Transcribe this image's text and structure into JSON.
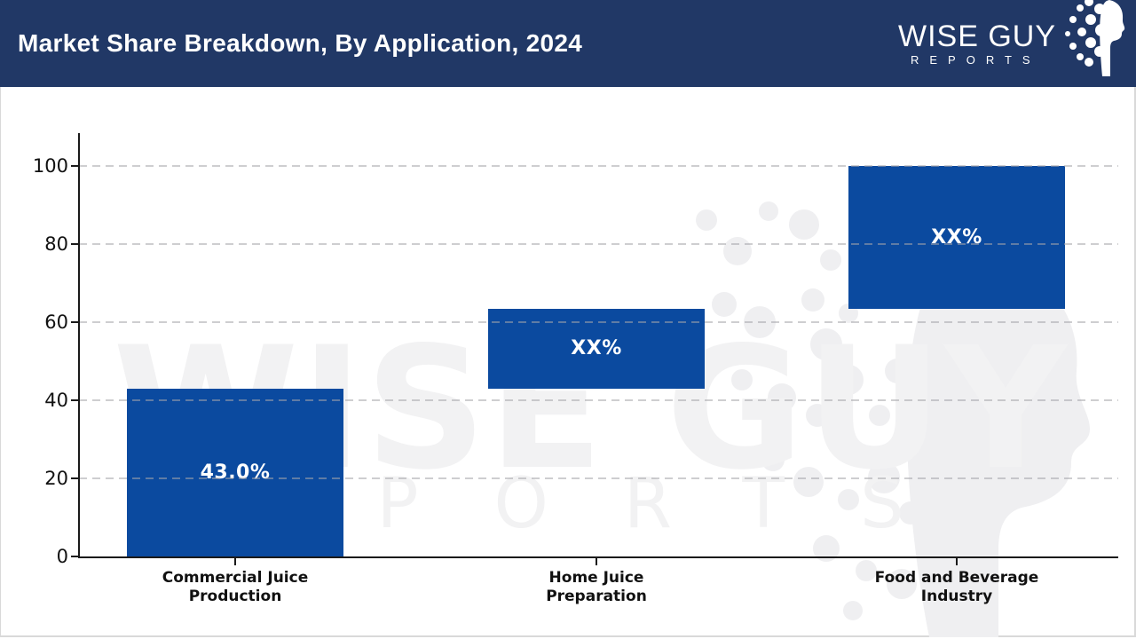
{
  "header": {
    "title": "Market Share Breakdown, By Application, 2024",
    "bg_color": "#213866",
    "logo": {
      "wordmark": "WISE GUY",
      "subtext": "REPORTS"
    }
  },
  "watermark": {
    "line1": "WISE GUY",
    "line2": "REPORTS"
  },
  "chart_data": {
    "type": "bar",
    "subtype": "waterfall",
    "title": "Market Share Breakdown, By Application, 2024",
    "categories": [
      {
        "slug": "commercial-juice-production",
        "lines": [
          "Commercial Juice",
          "Production"
        ]
      },
      {
        "slug": "home-juice-preparation",
        "lines": [
          "Home Juice",
          "Preparation"
        ]
      },
      {
        "slug": "food-and-beverage-industry",
        "lines": [
          "Food and Beverage",
          "Industry"
        ]
      }
    ],
    "segments": [
      {
        "category": "Commercial Juice Production",
        "start": 0,
        "end": 43.0,
        "label": "43.0%"
      },
      {
        "category": "Home Juice Preparation",
        "start": 43.0,
        "end": 63.5,
        "label": "XX%"
      },
      {
        "category": "Food and Beverage Industry",
        "start": 63.5,
        "end": 100.0,
        "label": "XX%"
      }
    ],
    "values": [
      43.0,
      20.5,
      36.5
    ],
    "ylim": [
      0,
      100
    ],
    "yticks": [
      0,
      20,
      40,
      60,
      80,
      100
    ],
    "grid": "horizontal-dashed",
    "legend": "none",
    "xlabel": "",
    "ylabel": "",
    "bar_color": "#0b4a9f",
    "bar_label_color": "#ffffff",
    "axis_color": "#1a1a1a",
    "gridline_color": "#d9d9d9"
  }
}
